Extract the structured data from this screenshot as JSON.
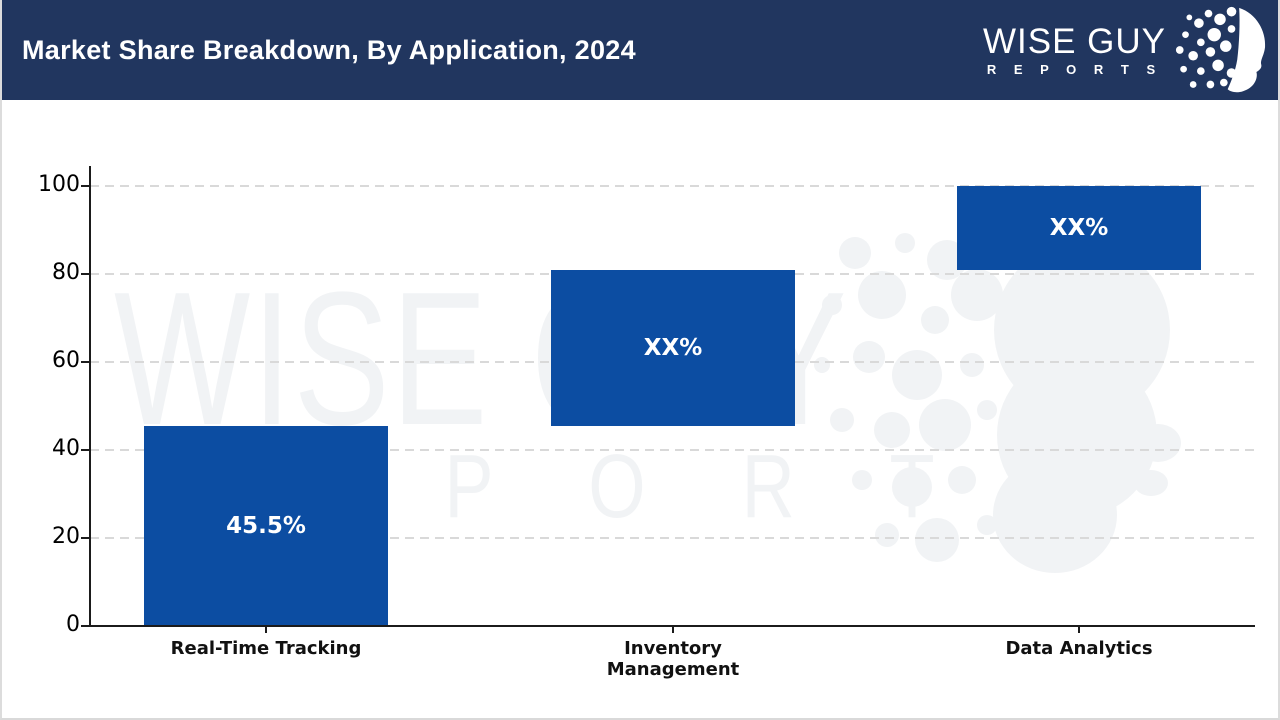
{
  "header": {
    "title": "Market Share Breakdown, By Application, 2024",
    "bg_color": "#21365f",
    "logo": {
      "line1": "WISE GUY",
      "line2": "R E P O R T S"
    }
  },
  "watermark": {
    "line1": "WISE GUY",
    "line2": "R E P O R T S"
  },
  "chart_data": {
    "type": "bar",
    "subtype": "waterfall-stacked-percentage",
    "title": "Market Share Breakdown, By Application, 2024",
    "xlabel": "",
    "ylabel": "",
    "ylim": [
      0,
      100
    ],
    "yticks": [
      0,
      20,
      40,
      60,
      80,
      100
    ],
    "grid": "horizontal dashed",
    "grid_color": "#d9d9d9",
    "bar_color": "#0c4da2",
    "value_label_color": "#ffffff",
    "categories": [
      "Real-Time Tracking",
      "Inventory\nManagement",
      "Data Analytics"
    ],
    "bars": [
      {
        "category": "Real-Time Tracking",
        "start": 0,
        "end": 45.5,
        "value": 45.5,
        "label": "45.5%"
      },
      {
        "category": "Inventory\nManagement",
        "start": 45.5,
        "end": 81,
        "value": 35.5,
        "label": "XX%"
      },
      {
        "category": "Data Analytics",
        "start": 81,
        "end": 100,
        "value": 19,
        "label": "XX%"
      }
    ]
  }
}
